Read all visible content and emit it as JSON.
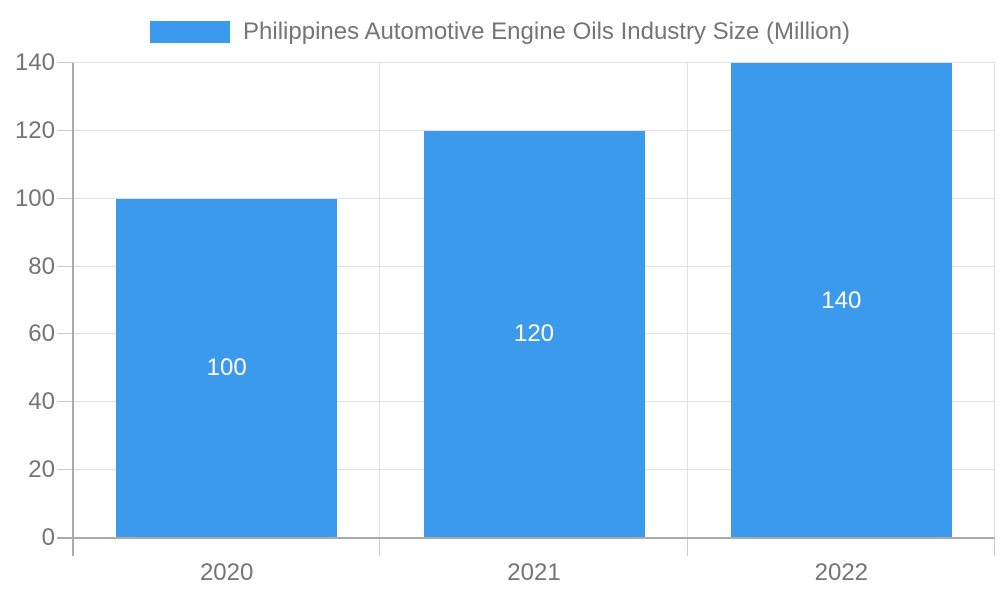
{
  "legend": {
    "label": "Philippines Automotive Engine Oils Industry Size (Million)"
  },
  "chart_data": {
    "type": "bar",
    "title": "Philippines Automotive Engine Oils Industry Size (Million)",
    "categories": [
      "2020",
      "2021",
      "2022"
    ],
    "values": [
      100,
      120,
      140
    ],
    "value_labels": [
      "100",
      "120",
      "140"
    ],
    "xlabel": "",
    "ylabel": "",
    "ylim": [
      0,
      140
    ],
    "yticks": [
      0,
      20,
      40,
      60,
      80,
      100,
      120,
      140
    ],
    "grid": true,
    "legend_position": "top",
    "value_label_position": "inside-center",
    "colors": {
      "bar": "#3B9AEC",
      "value_label": "#FFFFFF",
      "axis_text": "#757575",
      "legend_text": "#757575",
      "axis_line": "#ABABAB",
      "tick": "#CDCDCD",
      "gridline": "#E2E2E2"
    }
  }
}
